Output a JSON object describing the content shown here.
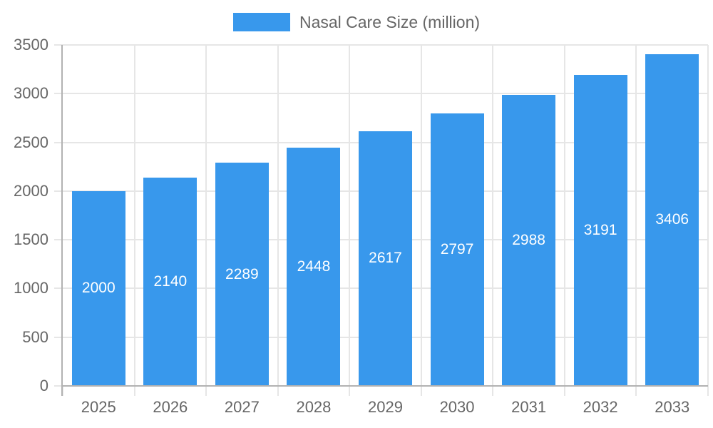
{
  "chart_data": {
    "type": "bar",
    "title": "",
    "legend": "Nasal Care Size (million)",
    "legend_position": "top",
    "categories": [
      "2025",
      "2026",
      "2027",
      "2028",
      "2029",
      "2030",
      "2031",
      "2032",
      "2033"
    ],
    "values": [
      2000,
      2140,
      2289,
      2448,
      2617,
      2797,
      2988,
      3191,
      3406
    ],
    "xlabel": "",
    "ylabel": "",
    "ylim": [
      0,
      3500
    ],
    "ytick_step": 500,
    "yticks": [
      0,
      500,
      1000,
      1500,
      2000,
      2500,
      3000,
      3500
    ],
    "grid": true,
    "bar_color": "#3898EC",
    "value_label_color": "#ffffff",
    "tick_text_color": "#666666",
    "grid_color": "#e6e6e6",
    "axis_line_color": "#b2b2b2"
  }
}
